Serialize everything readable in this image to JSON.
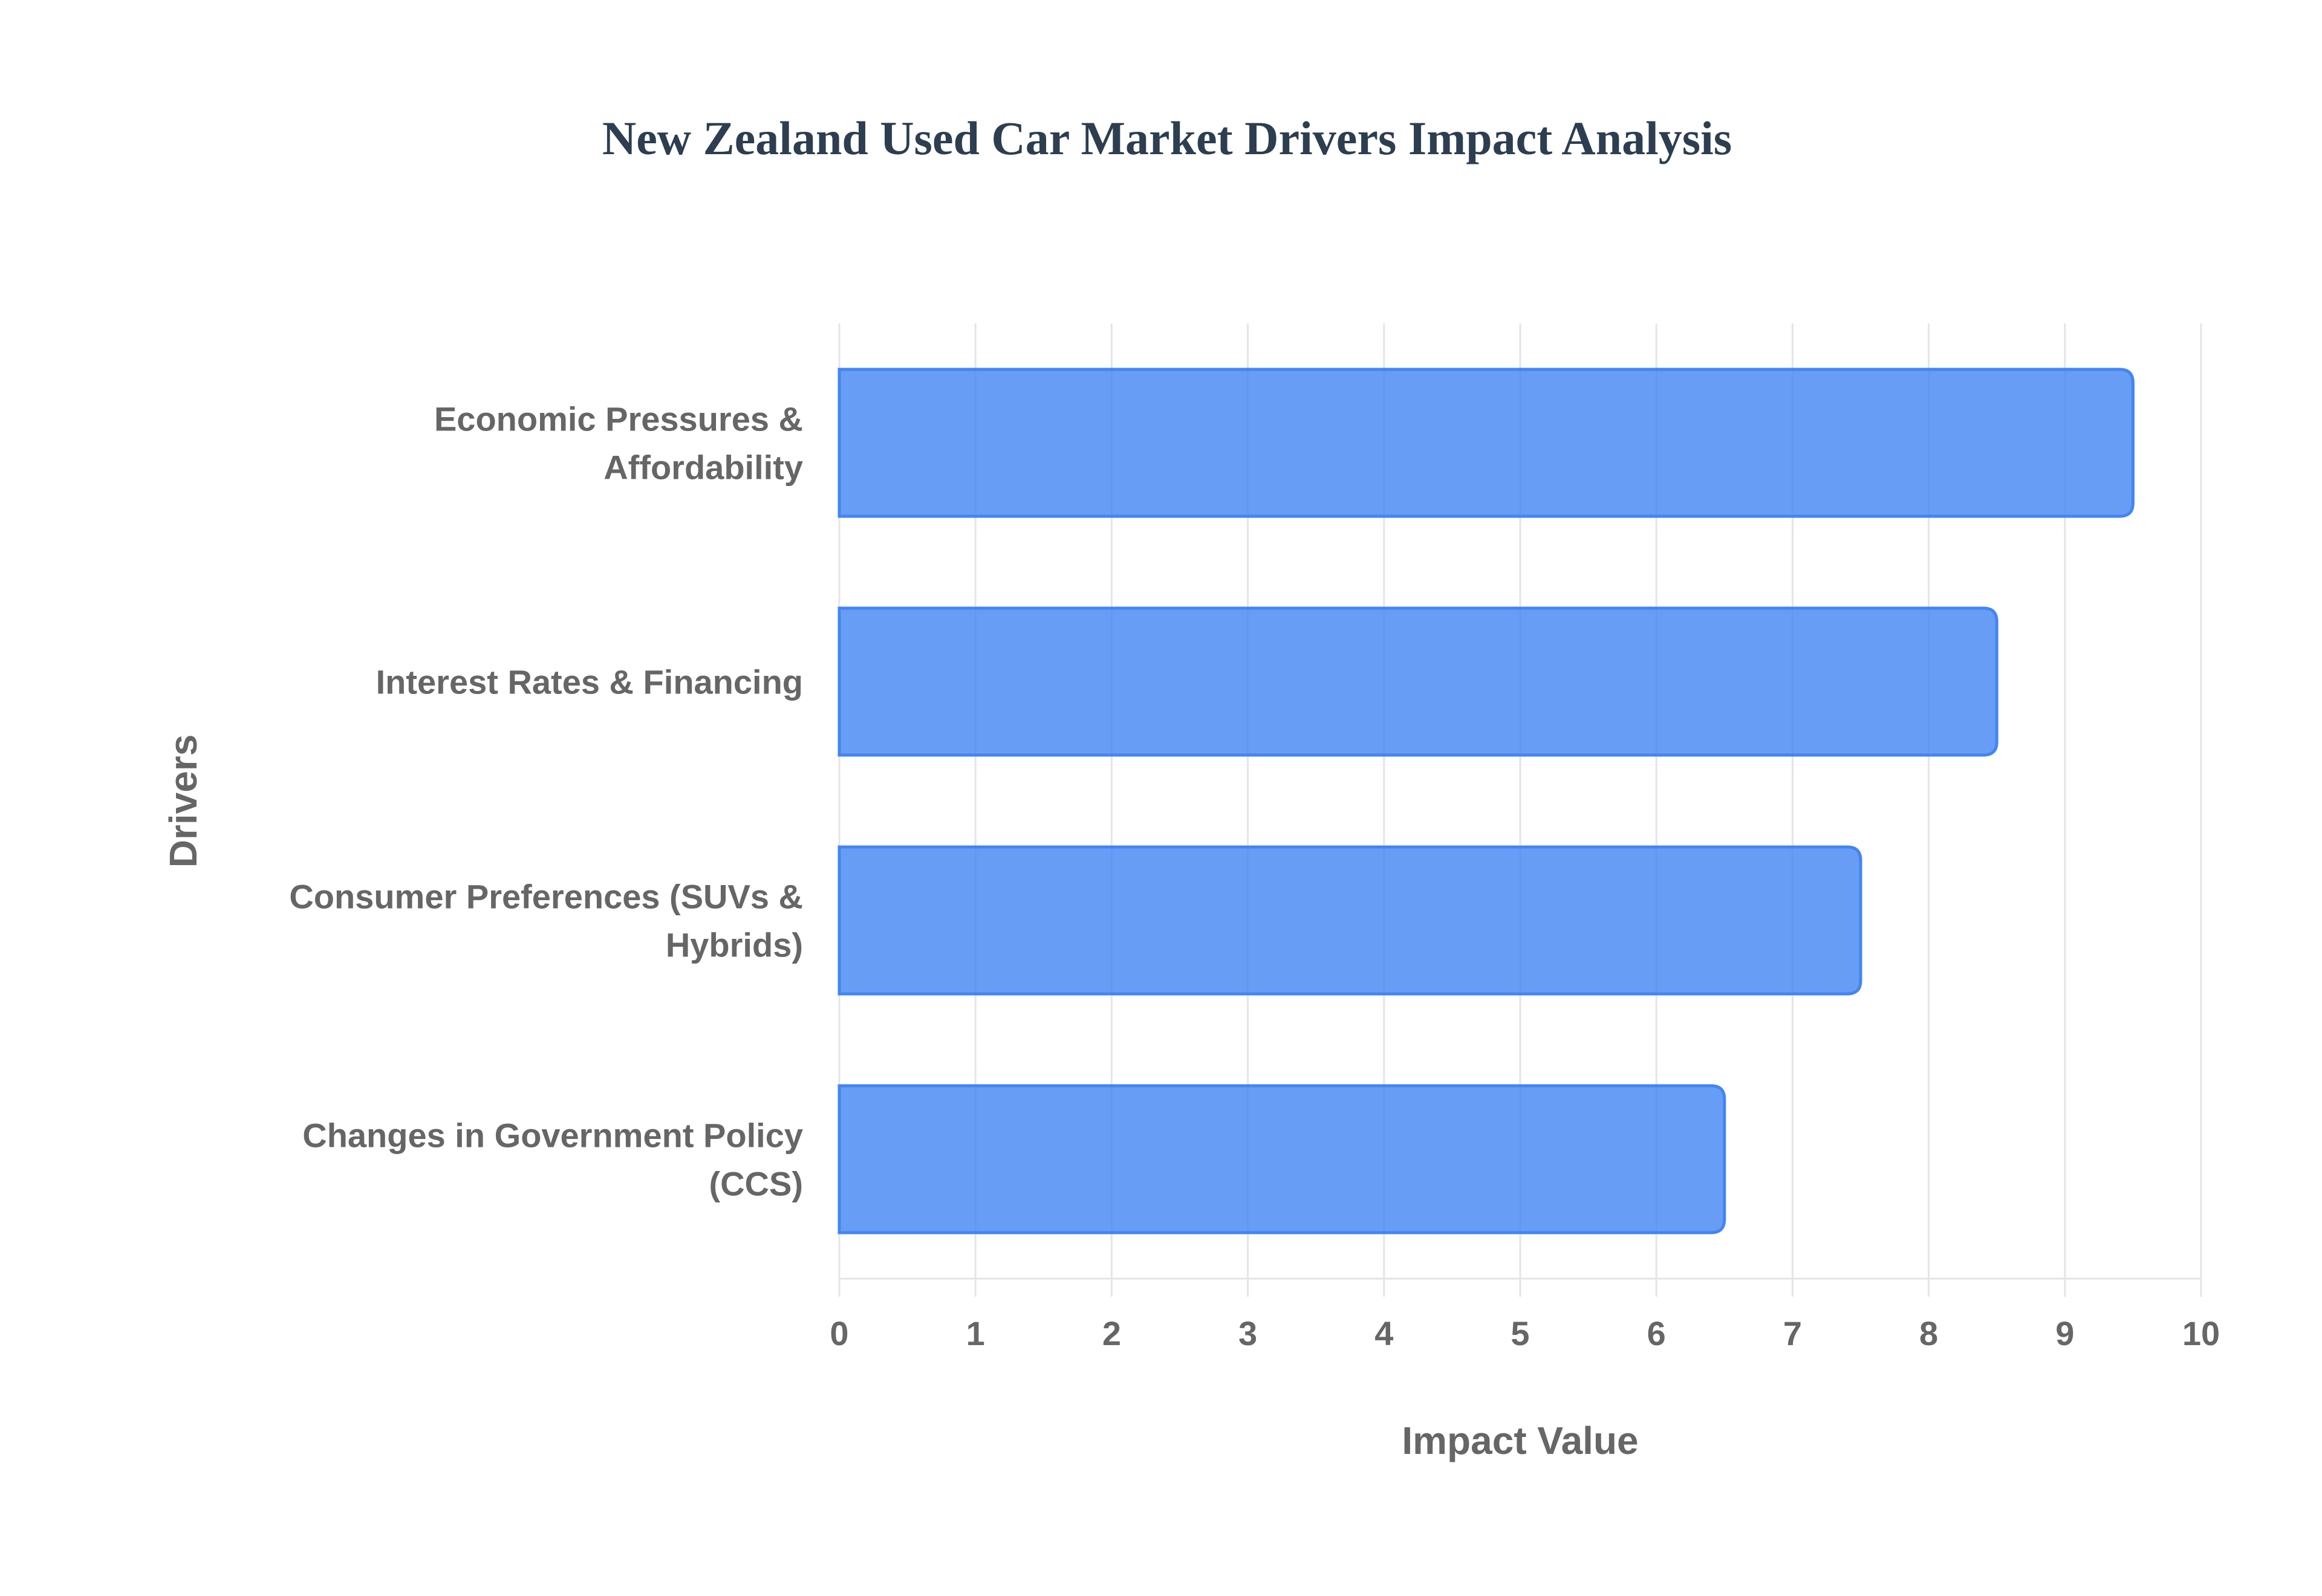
{
  "chart_data": {
    "type": "bar",
    "orientation": "horizontal",
    "title": "New Zealand Used Car Market Drivers Impact Analysis",
    "xlabel": "Impact Value",
    "ylabel": "Drivers",
    "categories": [
      [
        "Economic Pressures &",
        "Affordability"
      ],
      [
        "Interest Rates & Financing"
      ],
      [
        "Consumer Preferences (SUVs &",
        "Hybrids)"
      ],
      [
        "Changes in Government Policy",
        "(CCS)"
      ]
    ],
    "category_names": [
      "Economic Pressures & Affordability",
      "Interest Rates & Financing",
      "Consumer Preferences (SUVs & Hybrids)",
      "Changes in Government Policy (CCS)"
    ],
    "values": [
      9.5,
      8.5,
      7.5,
      6.5
    ],
    "xlim": [
      0,
      10
    ],
    "xticks": [
      0,
      1,
      2,
      3,
      4,
      5,
      6,
      7,
      8,
      9,
      10
    ],
    "grid": true,
    "legend": null,
    "colors": {
      "bar_fill": "#4285f4",
      "bar_border": "#4285f4",
      "title": "#2c3e50",
      "text": "#666666",
      "grid": "#e5e5e5"
    }
  }
}
